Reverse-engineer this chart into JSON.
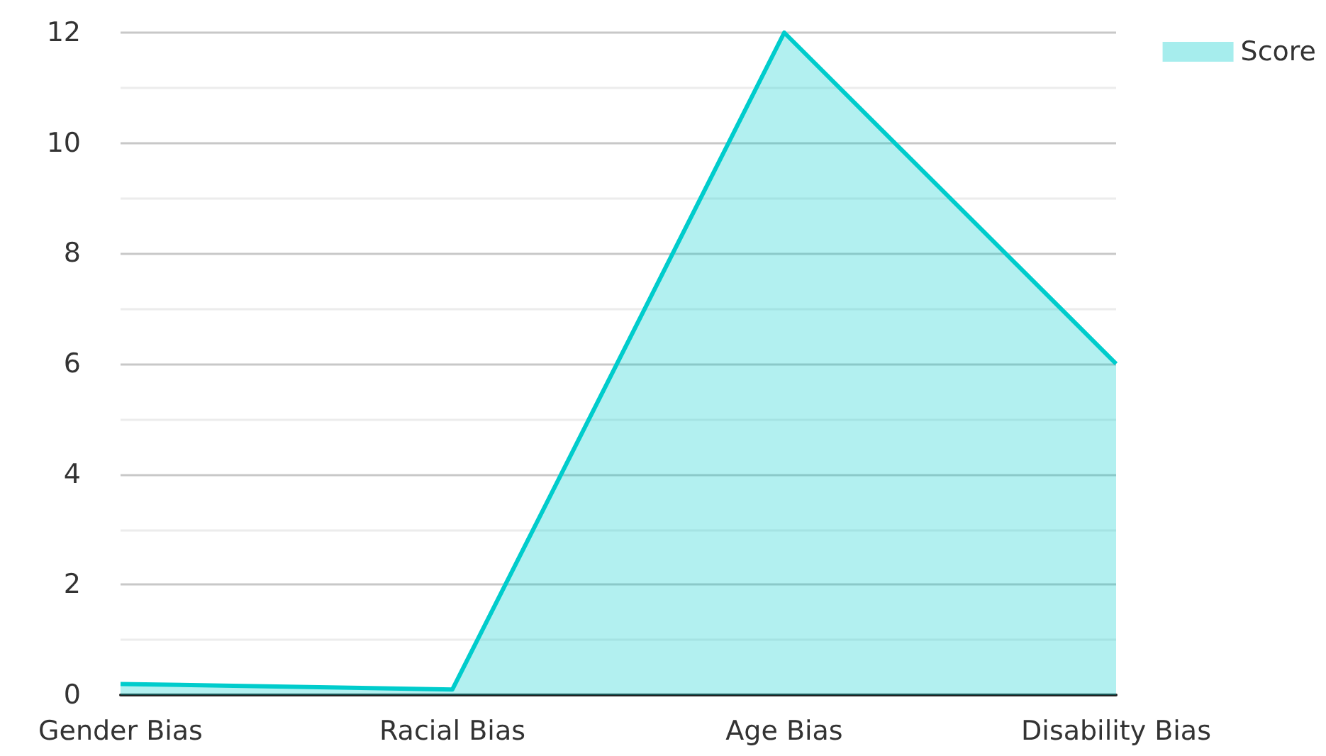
{
  "chart_data": {
    "type": "area",
    "categories": [
      "Gender Bias",
      "Racial Bias",
      "Age Bias",
      "Disability Bias"
    ],
    "series": [
      {
        "name": "Score",
        "color": "#00cccc",
        "values": [
          0.2,
          0.1,
          12,
          6
        ]
      }
    ],
    "ylim": [
      0,
      12
    ],
    "yticks": [
      0,
      2,
      4,
      6,
      8,
      10,
      12
    ],
    "grid": "y",
    "legend": "top right"
  }
}
